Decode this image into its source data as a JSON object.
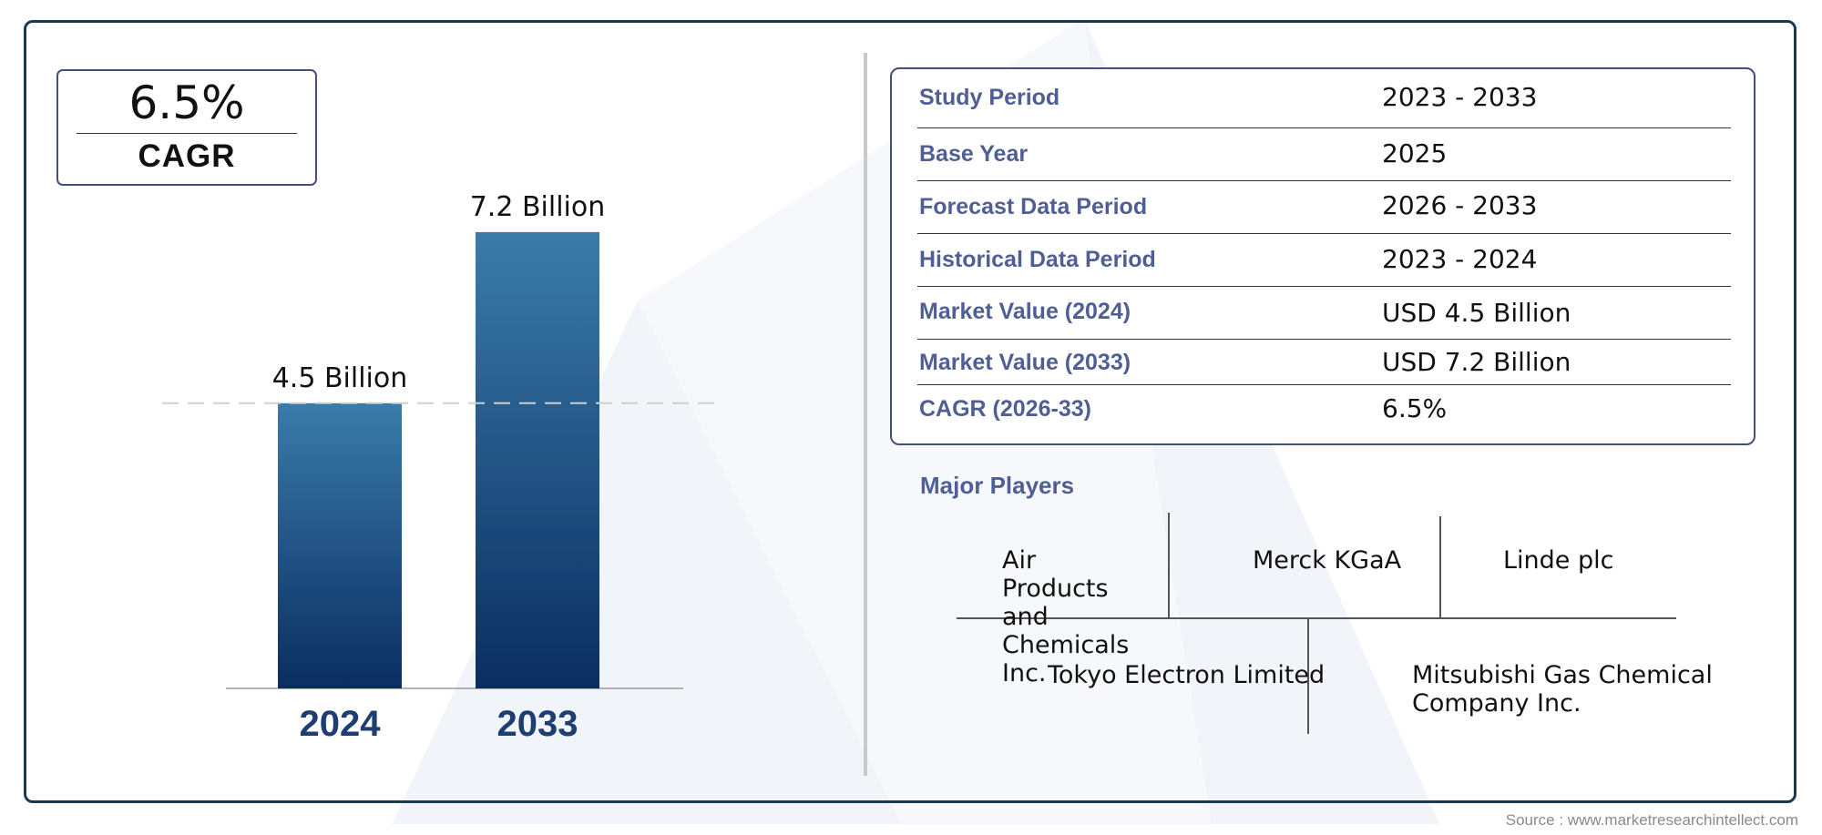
{
  "cagr_badge": {
    "value": "6.5%",
    "label": "CAGR"
  },
  "chart_data": {
    "type": "bar",
    "categories": [
      "2024",
      "2033"
    ],
    "values": [
      4.5,
      7.2
    ],
    "value_labels": [
      "4.5 Billion",
      "7.2 Billion"
    ],
    "title": "",
    "xlabel": "",
    "ylabel": "",
    "reference_line": 4.5,
    "colors": {
      "bar_top": "#3a7ca8",
      "bar_bottom": "#0b2d62",
      "category_label": "#1e3e72"
    }
  },
  "summary_table": {
    "rows": [
      {
        "key": "Study Period",
        "value": "2023 - 2033"
      },
      {
        "key": "Base Year",
        "value": "2025"
      },
      {
        "key": "Forecast Data Period",
        "value": "2026 - 2033"
      },
      {
        "key": "Historical Data Period",
        "value": "2023 - 2024"
      },
      {
        "key": "Market Value (2024)",
        "value": "USD 4.5 Billion"
      },
      {
        "key": "Market Value (2033)",
        "value": "USD 7.2 Billion"
      },
      {
        "key": "CAGR (2026-33)",
        "value": "6.5%"
      }
    ]
  },
  "major_players": {
    "title": "Major Players",
    "players": [
      "Air Products and Chemicals Inc.",
      "Merck KGaA",
      "Linde plc",
      "Tokyo Electron Limited",
      "Mitsubishi Gas Chemical Company Inc."
    ]
  },
  "source": "Source : www.marketresearchintellect.com",
  "colors": {
    "frame": "#1a3850",
    "accent": "#4f5f95",
    "box_border": "#44507a"
  }
}
